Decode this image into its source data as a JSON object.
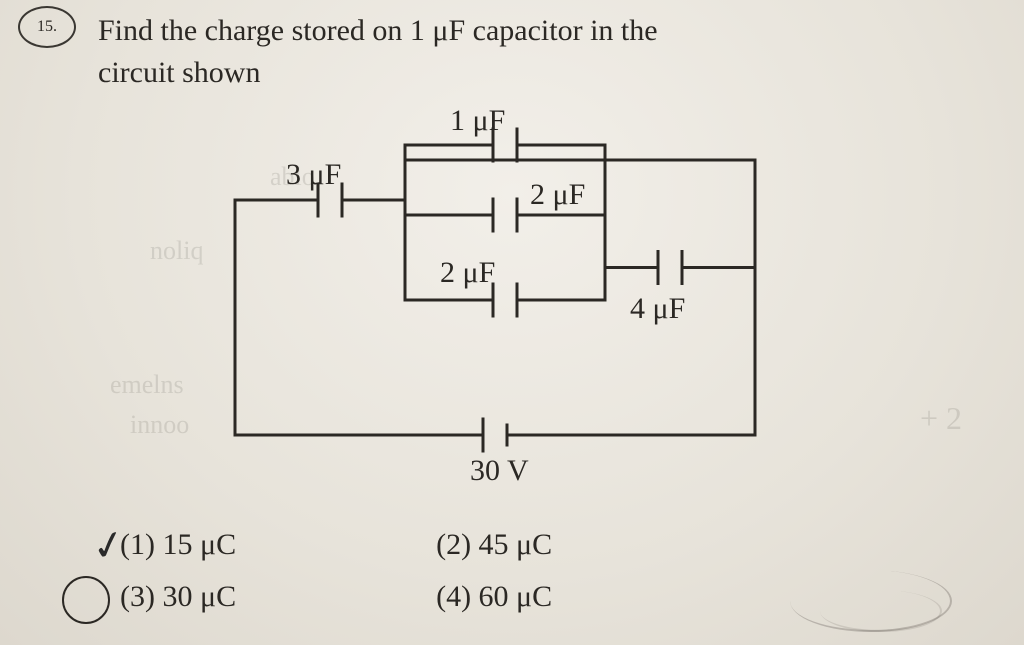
{
  "question": {
    "number": "15.",
    "text_line1": "Find the charge stored on 1 μF capacitor in the",
    "text_line2": "circuit shown"
  },
  "circuit": {
    "stroke": "#2b2824",
    "stroke_width": 3,
    "labels": {
      "c1": "1 μF",
      "c3": "3 μF",
      "c2a": "2 μF",
      "c2b": "2 μF",
      "c4": "4 μF",
      "v": "30 V"
    },
    "geometry": {
      "outerLeft": 230,
      "outerRight": 760,
      "topRail": 160,
      "nodeA": 400,
      "nodeB": 610,
      "midY": 220,
      "lowY": 280,
      "bottomRail": 430,
      "cap_gap": 12,
      "plate_half": 16,
      "plate_small_half": 10
    }
  },
  "answers": {
    "a1": "(1) 15 μC",
    "a2": "(2) 45 μC",
    "a3": "(3) 30 μC",
    "a4": "(4) 60 μC"
  },
  "ghost_text": {
    "g1": "ablo",
    "g2": "noliq",
    "g3": "emelns",
    "g4": "innoo",
    "g5": "+ 2"
  }
}
